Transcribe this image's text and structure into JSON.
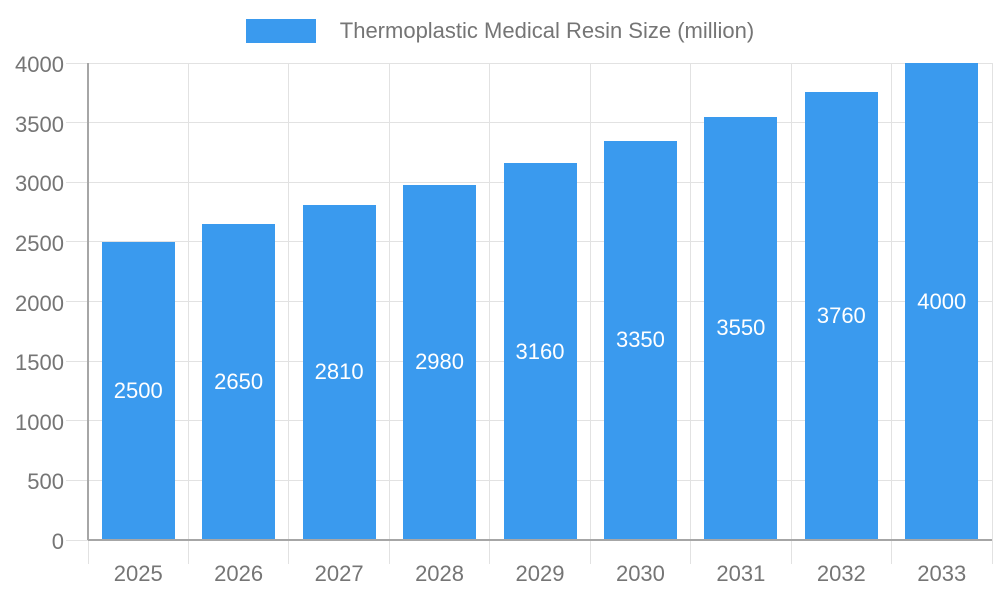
{
  "legend": {
    "label": "Thermoplastic Medical Resin Size (million)"
  },
  "chart_data": {
    "type": "bar",
    "title": "Thermoplastic Medical Resin Size (million)",
    "categories": [
      "2025",
      "2026",
      "2027",
      "2028",
      "2029",
      "2030",
      "2031",
      "2032",
      "2033"
    ],
    "values": [
      2500,
      2650,
      2810,
      2980,
      3160,
      3350,
      3550,
      3760,
      4000
    ],
    "series": [
      {
        "name": "Thermoplastic Medical Resin Size (million)",
        "values": [
          2500,
          2650,
          2810,
          2980,
          3160,
          3350,
          3550,
          3760,
          4000
        ]
      }
    ],
    "xlabel": "",
    "ylabel": "",
    "ylim": [
      0,
      4000
    ],
    "ytick_step": 500,
    "ytick_labels": [
      "0",
      "500",
      "1000",
      "1500",
      "2000",
      "2500",
      "3000",
      "3500",
      "4000"
    ],
    "grid": true,
    "legend_position": "top",
    "bar_label_position": "inside-center",
    "colors": {
      "bar": "#3A9AEE",
      "bar_label": "#FFFFFF",
      "axis_text": "#757575",
      "grid_line": "#E2E2E2",
      "axis_line": "#A6A6A6"
    }
  }
}
